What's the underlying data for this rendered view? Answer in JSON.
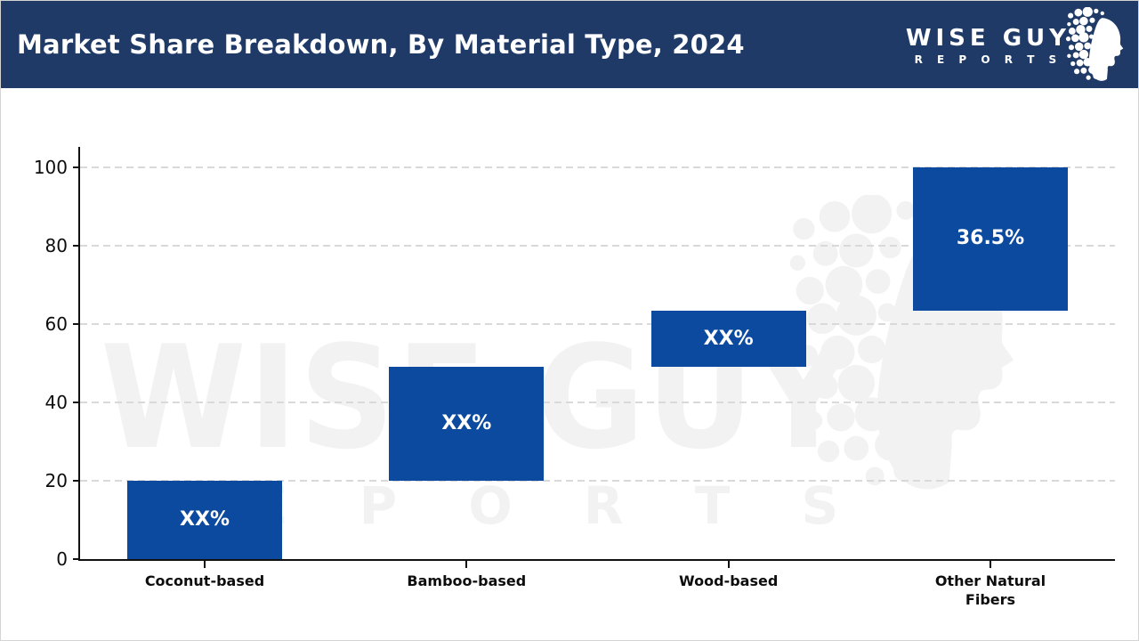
{
  "header": {
    "title": "Market Share Breakdown, By Material Type, 2024",
    "logo": {
      "line1": "WISE GUY",
      "line2": "R E P O R T S"
    }
  },
  "watermark": {
    "line1": "WISE GUY",
    "line2": "R E P O R T S"
  },
  "colors": {
    "header_bg": "#1f3a67",
    "bar": "#0b4a9e",
    "bar_label": "#ffffff",
    "grid": "#d9d9d9",
    "axis": "#111111",
    "tick_text": "#0d0d0d",
    "watermark": "#f2f2f2"
  },
  "chart_data": {
    "type": "bar",
    "subtype": "waterfall",
    "title": "Market Share Breakdown, By Material Type, 2024",
    "categories": [
      "Coconut-based",
      "Bamboo-based",
      "Wood-based",
      "Other Natural Fibers"
    ],
    "bars": [
      {
        "category": "Coconut-based",
        "start": 0,
        "end": 20,
        "value": 20,
        "label": "XX%"
      },
      {
        "category": "Bamboo-based",
        "start": 20,
        "end": 49,
        "value": 29,
        "label": "XX%"
      },
      {
        "category": "Wood-based",
        "start": 49,
        "end": 63.5,
        "value": 14.5,
        "label": "XX%"
      },
      {
        "category": "Other Natural Fibers",
        "start": 63.5,
        "end": 100,
        "value": 36.5,
        "label": "36.5%"
      }
    ],
    "values": [
      20,
      29,
      14.5,
      36.5
    ],
    "yticks": [
      0,
      20,
      40,
      60,
      80,
      100
    ],
    "ylim": [
      0,
      100
    ],
    "xlabel": "",
    "ylabel": "",
    "grid": "horizontal-dashed",
    "legend": "none"
  }
}
